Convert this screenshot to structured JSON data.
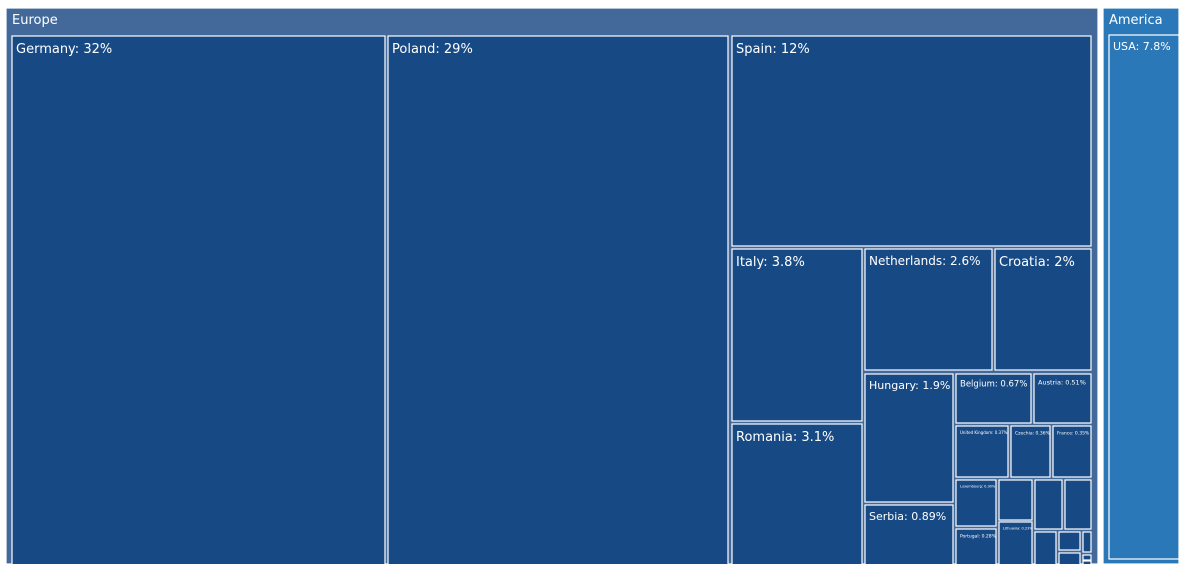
{
  "chart_data": {
    "type": "treemap",
    "title": "",
    "colors": {
      "europe": "#174a85",
      "europe_header": "#43699b",
      "america": "#2b78b8",
      "border": "#ffffff"
    },
    "groups": [
      {
        "name": "Europe",
        "children": [
          {
            "name": "Germany",
            "label": "Germany: 32%",
            "value": 32
          },
          {
            "name": "Poland",
            "label": "Poland: 29%",
            "value": 29
          },
          {
            "name": "Spain",
            "label": "Spain: 12%",
            "value": 12
          },
          {
            "name": "Italy",
            "label": "Italy: 3.8%",
            "value": 3.8
          },
          {
            "name": "Romania",
            "label": "Romania: 3.1%",
            "value": 3.1
          },
          {
            "name": "Netherlands",
            "label": "Netherlands: 2.6%",
            "value": 2.6
          },
          {
            "name": "Croatia",
            "label": "Croatia: 2%",
            "value": 2
          },
          {
            "name": "Hungary",
            "label": "Hungary: 1.9%",
            "value": 1.9
          },
          {
            "name": "Serbia",
            "label": "Serbia: 0.89%",
            "value": 0.89
          },
          {
            "name": "Belgium",
            "label": "Belgium: 0.67%",
            "value": 0.67
          },
          {
            "name": "Austria",
            "label": "Austria: 0.51%",
            "value": 0.51
          },
          {
            "name": "United Kingdom",
            "label": "United Kingdom: 0.37%",
            "value": 0.37
          },
          {
            "name": "Czechia",
            "label": "Czechia: 0.36%",
            "value": 0.36
          },
          {
            "name": "France",
            "label": "France: 0.35%",
            "value": 0.35
          },
          {
            "name": "Luxembourg",
            "label": "Luxembourg: 0.30%",
            "value": 0.3
          },
          {
            "name": "Portugal",
            "label": "Portugal: 0.28%",
            "value": 0.28
          },
          {
            "name": "Lithuania",
            "label": "Lithuania: 0.23%",
            "value": 0.23
          }
        ]
      },
      {
        "name": "America",
        "children": [
          {
            "name": "USA",
            "label": "USA: 7.8%",
            "value": 7.8
          }
        ]
      }
    ]
  }
}
